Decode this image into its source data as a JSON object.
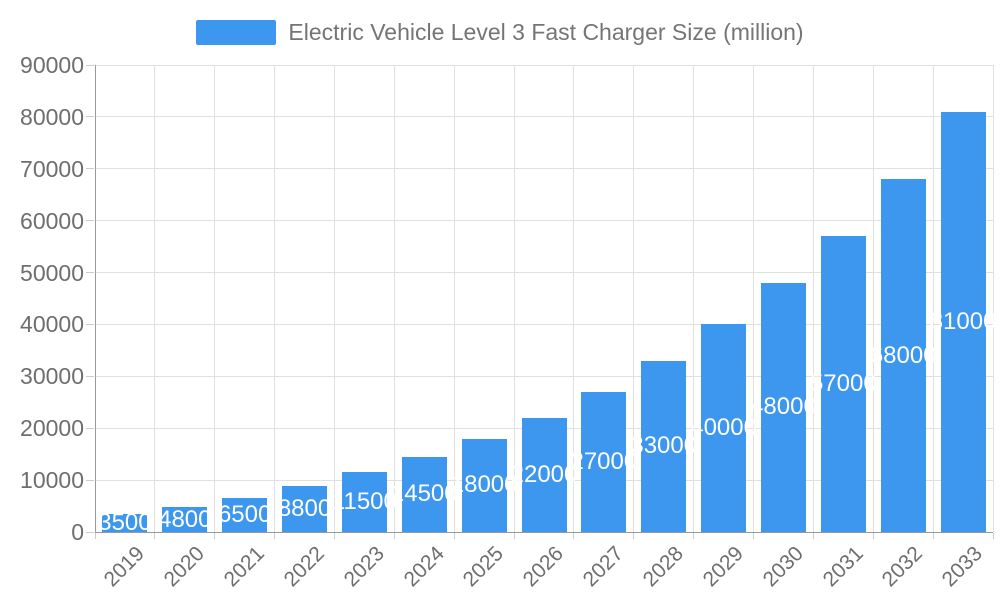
{
  "legend": {
    "label": "Electric Vehicle Level 3 Fast Charger Size (million)"
  },
  "chart_data": {
    "type": "bar",
    "title": "Electric Vehicle Level 3 Fast Charger Size (million)",
    "categories": [
      "2019",
      "2020",
      "2021",
      "2022",
      "2023",
      "2024",
      "2025",
      "2026",
      "2027",
      "2028",
      "2029",
      "2030",
      "2031",
      "2032",
      "2033"
    ],
    "values": [
      3500,
      4800,
      6500,
      8800,
      11500,
      14500,
      18000,
      22000,
      27000,
      33000,
      40000,
      48000,
      57000,
      68000,
      81000
    ],
    "bar_labels": [
      "3500",
      "4800",
      "6500",
      "8800",
      "11500",
      "14500",
      "18000",
      "22000",
      "27000",
      "33000",
      "40000",
      "48000",
      "57000",
      "68000",
      "81000"
    ],
    "xlabel": "",
    "ylabel": "",
    "ylim": [
      0,
      90000
    ],
    "y_ticks": [
      0,
      10000,
      20000,
      30000,
      40000,
      50000,
      60000,
      70000,
      80000,
      90000
    ],
    "y_tick_labels": [
      "0",
      "10000",
      "20000",
      "30000",
      "40000",
      "50000",
      "60000",
      "70000",
      "80000",
      "90000"
    ],
    "grid": true,
    "legend_position": "top",
    "colors": {
      "bar": "#3D97EE",
      "grid": "#E0E0E0",
      "axis": "#999999",
      "tick": "#CCCCCC",
      "axis_label": "#6E6E6E",
      "bar_label": "#FFFFFF",
      "legend_text": "#757575"
    }
  }
}
